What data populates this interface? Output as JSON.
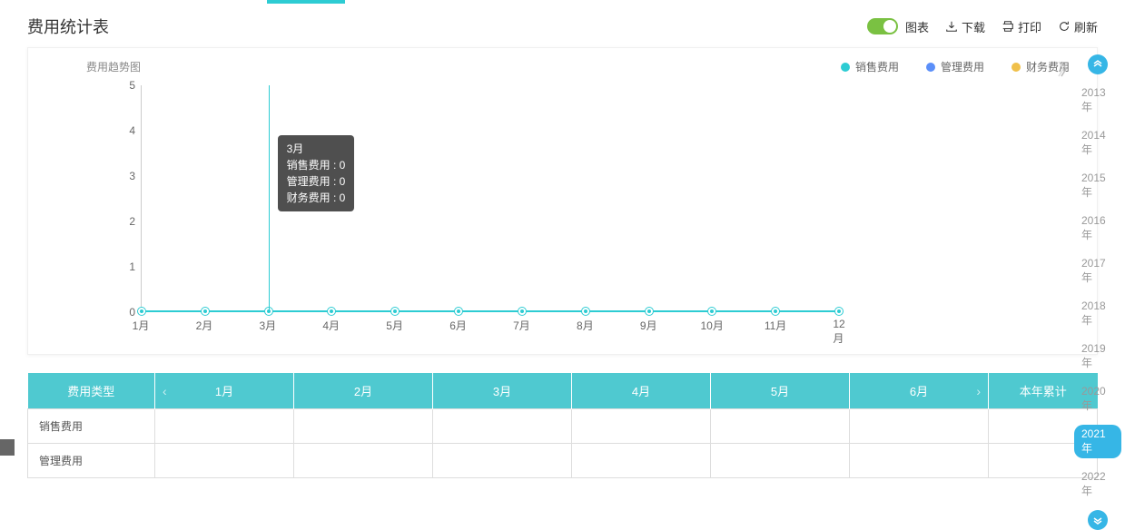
{
  "colors": {
    "teal": "#2dccd3",
    "tableHeader": "#4fc9d0",
    "toggle": "#7ac142",
    "railBtn": "#36b6e6",
    "series2": "#5b8ff9",
    "series3": "#f0c04a"
  },
  "title": "费用统计表",
  "actions": {
    "toggleLabel": "图表",
    "download": "下载",
    "print": "打印",
    "refresh": "刷新"
  },
  "chart": {
    "subtitle": "费用趋势图",
    "legend": [
      {
        "label": "销售费用",
        "color": "#2dccd3"
      },
      {
        "label": "管理费用",
        "color": "#5b8ff9"
      },
      {
        "label": "财务费用",
        "color": "#f0c04a"
      }
    ],
    "ymin": 0,
    "ymax": 5,
    "ystep": 1,
    "yticks": [
      0,
      1,
      2,
      3,
      4,
      5
    ],
    "xticks": [
      "1月",
      "2月",
      "3月",
      "4月",
      "5月",
      "6月",
      "7月",
      "8月",
      "9月",
      "10月",
      "11月",
      "12月"
    ],
    "series": [
      {
        "name": "销售费用",
        "color": "#2dccd3",
        "values": [
          0,
          0,
          0,
          0,
          0,
          0,
          0,
          0,
          0,
          0,
          0,
          0
        ]
      },
      {
        "name": "管理费用",
        "color": "#5b8ff9",
        "values": [
          0,
          0,
          0,
          0,
          0,
          0,
          0,
          0,
          0,
          0,
          0,
          0
        ]
      },
      {
        "name": "财务费用",
        "color": "#f0c04a",
        "values": [
          0,
          0,
          0,
          0,
          0,
          0,
          0,
          0,
          0,
          0,
          0,
          0
        ]
      }
    ],
    "hover": {
      "index": 2,
      "title": "3月",
      "rows": [
        {
          "k": "销售费用",
          "v": 0
        },
        {
          "k": "管理费用",
          "v": 0
        },
        {
          "k": "财务费用",
          "v": 0
        }
      ]
    }
  },
  "table": {
    "firstCol": "费用类型",
    "lastCol": "本年累计",
    "months": [
      "1月",
      "2月",
      "3月",
      "4月",
      "5月",
      "6月"
    ],
    "rows": [
      {
        "label": "销售费用",
        "cells": [
          "",
          "",
          "",
          "",
          "",
          "",
          ""
        ]
      },
      {
        "label": "管理费用",
        "cells": [
          "",
          "",
          "",
          "",
          "",
          "",
          ""
        ]
      }
    ]
  },
  "years": {
    "active": "2021年",
    "list": [
      "2013年",
      "2014年",
      "2015年",
      "2016年",
      "2017年",
      "2018年",
      "2019年",
      "2020年",
      "2021年",
      "2022年"
    ]
  }
}
